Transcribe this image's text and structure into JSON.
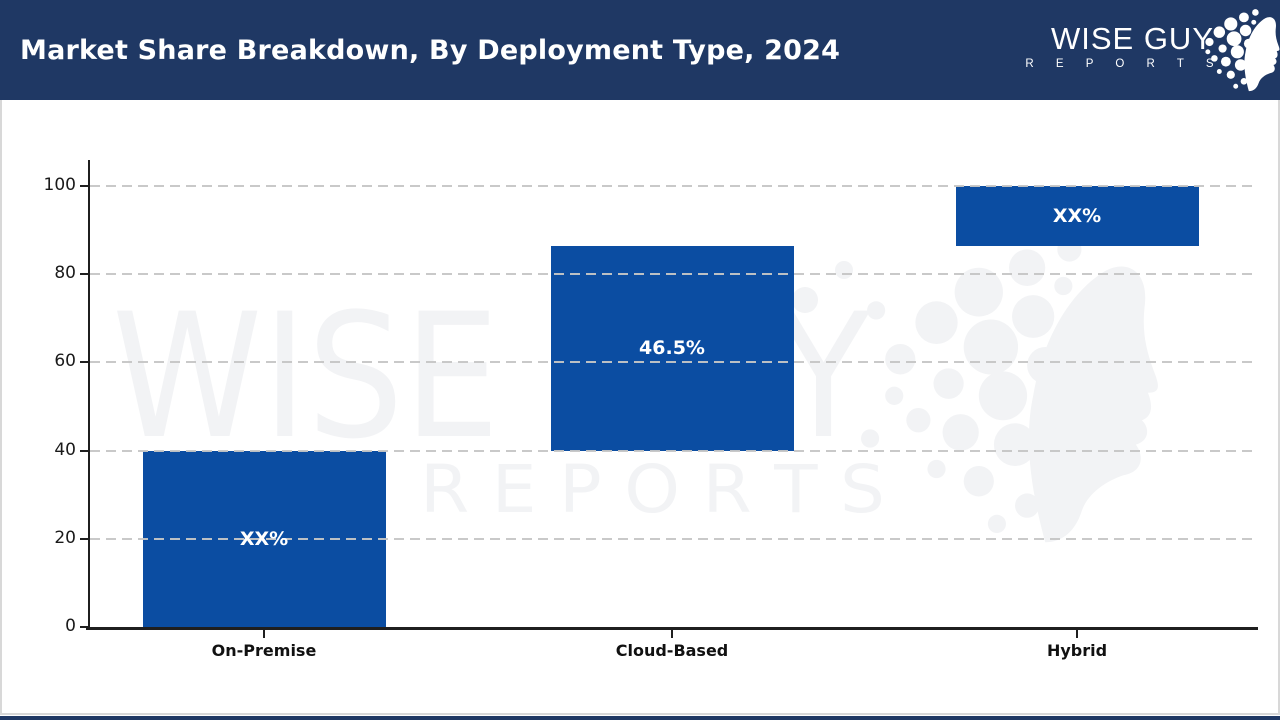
{
  "header": {
    "title": "Market Share Breakdown, By Deployment Type, 2024",
    "logo": {
      "line1": "WISE GUY",
      "line2": "R E P O R T S",
      "head_icon": "dotted-head-profile"
    }
  },
  "watermark": {
    "line1": "WISE GUY",
    "line2": "R E P O R T S",
    "head_icon": "dotted-head-profile"
  },
  "colors": {
    "header_bg": "#1F3864",
    "footer_bg": "#1F3864",
    "bar": "#0B4DA2",
    "bar_label_text": "#FFFFFF",
    "axis": "#1F1F1F",
    "gridline": "#C6C6C6",
    "watermark": "#F2F3F5"
  },
  "chart_data": {
    "type": "bar",
    "subtype": "floating-waterfall",
    "title": "Market Share Breakdown, By Deployment Type, 2024",
    "categories": [
      "On-Premise",
      "Cloud-Based",
      "Hybrid"
    ],
    "bars": [
      {
        "category": "On-Premise",
        "start": 0,
        "end": 40,
        "value_label": "XX%"
      },
      {
        "category": "Cloud-Based",
        "start": 40,
        "end": 86.5,
        "value_label": "46.5%"
      },
      {
        "category": "Hybrid",
        "start": 86.5,
        "end": 100,
        "value_label": "XX%"
      }
    ],
    "xlabel": "",
    "ylabel": "",
    "ylim": [
      0,
      100
    ],
    "yticks": [
      0,
      20,
      40,
      60,
      80,
      100
    ],
    "grid": "horizontal-dashed",
    "legend": "none"
  }
}
